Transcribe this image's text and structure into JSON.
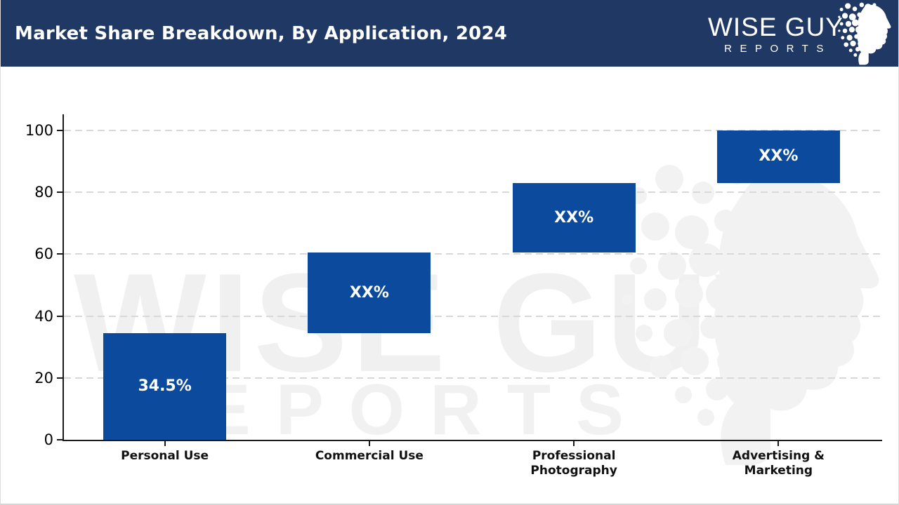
{
  "header": {
    "title": "Market Share Breakdown, By Application, 2024"
  },
  "logo": {
    "brand": "WISE GUY",
    "sub": "REPORTS"
  },
  "watermark": {
    "line1": "WISE GUY",
    "line2": "REPORTS"
  },
  "chart_data": {
    "type": "bar",
    "subtype": "waterfall-floating-bars",
    "title": "Market Share Breakdown, By Application, 2024",
    "categories": [
      "Personal Use",
      "Commercial Use",
      "Professional Photography",
      "Advertising & Marketing"
    ],
    "bars": [
      {
        "category": "Personal Use",
        "start": 0,
        "end": 34.5,
        "label": "34.5%"
      },
      {
        "category": "Commercial Use",
        "start": 34.5,
        "end": 60.5,
        "label": "XX%"
      },
      {
        "category": "Professional Photography",
        "start": 60.5,
        "end": 83,
        "label": "XX%"
      },
      {
        "category": "Advertising & Marketing",
        "start": 83,
        "end": 100,
        "label": "XX%"
      }
    ],
    "ylim": [
      0,
      100
    ],
    "yticks": [
      0,
      20,
      40,
      60,
      80,
      100
    ],
    "xlabel": "",
    "ylabel": "",
    "grid": "horizontal-dashed",
    "legend": "none",
    "bar_color": "#0b4a9c",
    "label_color": "#ffffff",
    "axis_color": "#1a1a1a",
    "grid_color": "#d8d8d8"
  }
}
